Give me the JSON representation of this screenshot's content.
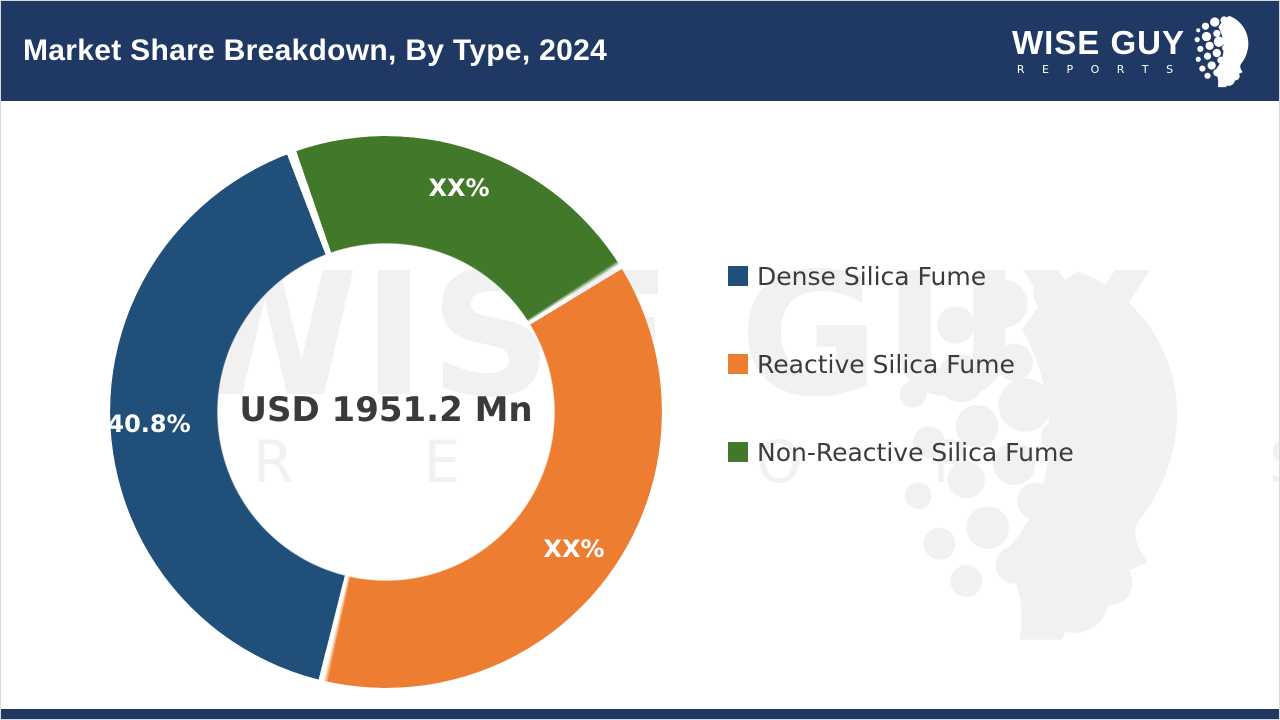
{
  "header": {
    "title": "Market Share Breakdown, By Type, 2024",
    "logo": {
      "name": "WISE GUY",
      "tagline": "R E P O R T S"
    }
  },
  "chart_data": {
    "type": "pie",
    "subtype": "donut",
    "title": "Market Share Breakdown, By Type, 2024",
    "center_label": "USD 1951.2 Mn",
    "legend_position": "right",
    "start_angle_deg": 340,
    "direction": "clockwise",
    "inner_radius_ratio": 0.61,
    "slices": [
      {
        "label": "Dense Silica Fume",
        "displayed_value": "40.8%",
        "percent": 40.8,
        "color": "#20507a"
      },
      {
        "label": "Reactive Silica Fume",
        "displayed_value": "XX%",
        "percent": 37.6,
        "color": "#ed7d31"
      },
      {
        "label": "Non-Reactive Silica Fume",
        "displayed_value": "XX%",
        "percent": 21.6,
        "color": "#41782a"
      }
    ],
    "draw_order": [
      2,
      1,
      0
    ]
  },
  "watermark": {
    "name": "WISE GUY",
    "tagline": "R E P O R T S"
  },
  "colors": {
    "header_bg": "#1f3864",
    "footer_bg": "#1f3864",
    "center_text": "#3a3a3a",
    "legend_text": "#3c3c3c",
    "watermark": "#f1f1f2",
    "page_border": "#d9d9d9",
    "slice_label_text": "#ffffff"
  }
}
